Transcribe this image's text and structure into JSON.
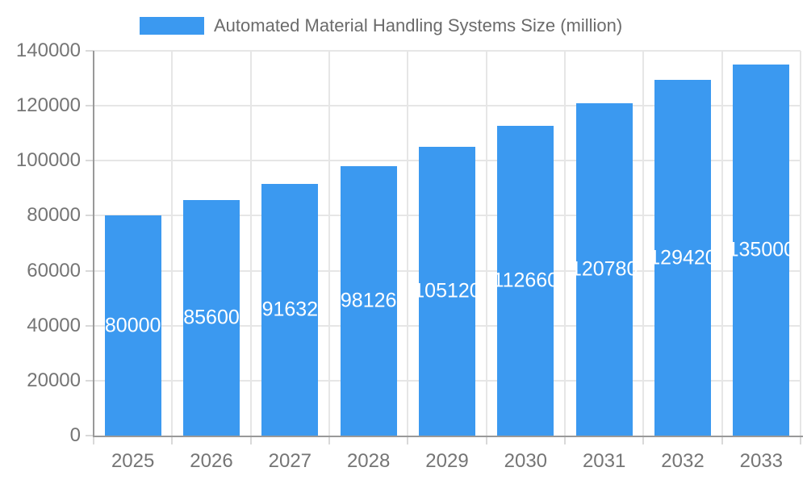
{
  "legend": {
    "label": "Automated Material Handling Systems Size (million)"
  },
  "colors": {
    "bar": "#3b99f0",
    "grid_line": "#e6e6e6",
    "tick_mark": "#d9d9d9",
    "axis_line": "#999999",
    "axis_label": "#757575",
    "value_label": "#ffffff",
    "legend_label": "#6b6b6b",
    "background": "#ffffff"
  },
  "chart_data": {
    "type": "bar",
    "title": "Automated Material Handling Systems Size (million)",
    "categories": [
      "2025",
      "2026",
      "2027",
      "2028",
      "2029",
      "2030",
      "2031",
      "2032",
      "2033"
    ],
    "series": [
      {
        "name": "Automated Material Handling Systems Size (million)",
        "values": [
          80000,
          85600,
          91632,
          98126,
          105120,
          112660,
          120780,
          129420,
          135000
        ]
      }
    ],
    "value_labels": [
      "80000",
      "85600",
      "91632",
      "98126",
      "105120",
      "112660",
      "120780",
      "129420",
      "135000"
    ],
    "xlabel": "",
    "ylabel": "",
    "ylim": [
      0,
      140000
    ],
    "yticks": [
      0,
      20000,
      40000,
      60000,
      80000,
      100000,
      120000,
      140000
    ],
    "ytick_labels": [
      "0",
      "20000",
      "40000",
      "60000",
      "80000",
      "100000",
      "120000",
      "140000"
    ],
    "grid": "horizontal-and-vertical",
    "legend_position": "top",
    "value_label_style": "white-centered-inside-bar"
  }
}
